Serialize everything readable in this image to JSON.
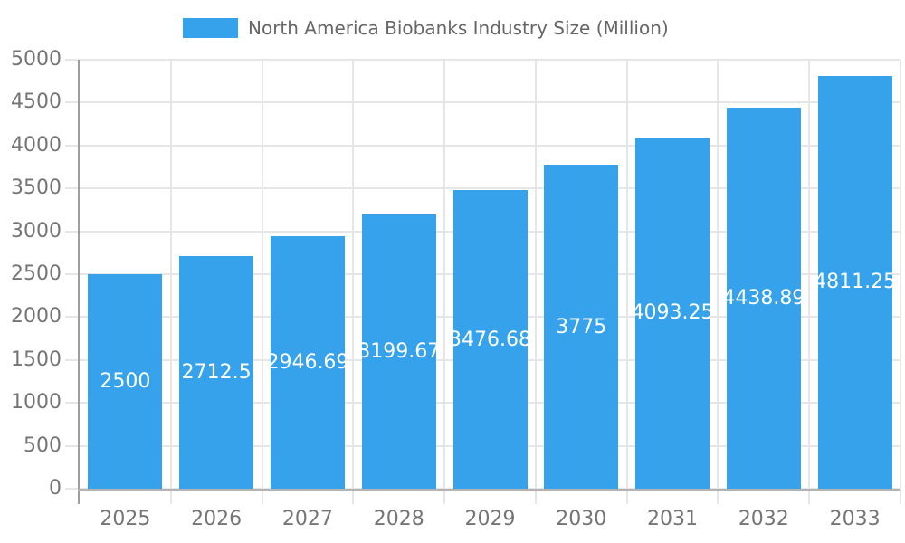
{
  "legend": {
    "label": "North America Biobanks Industry Size (Million)"
  },
  "chart_data": {
    "type": "bar",
    "title": "North America Biobanks Industry Size (Million)",
    "categories": [
      "2025",
      "2026",
      "2027",
      "2028",
      "2029",
      "2030",
      "2031",
      "2032",
      "2033"
    ],
    "values": [
      2500,
      2712.5,
      2946.69,
      3199.67,
      3476.68,
      3775,
      4093.25,
      4438.89,
      4811.25
    ],
    "bar_labels": [
      "2500",
      "2712.5",
      "2946.69",
      "3199.67",
      "3476.68",
      "3775",
      "4093.25",
      "4438.89",
      "4811.25"
    ],
    "xlabel": "",
    "ylabel": "",
    "ylim": [
      0,
      5000
    ],
    "ytick_step": 500,
    "yticks": [
      "0",
      "500",
      "1000",
      "1500",
      "2000",
      "2500",
      "3000",
      "3500",
      "4000",
      "4500",
      "5000"
    ],
    "grid": "both",
    "legend_position": "top"
  },
  "colors": {
    "bar": "#36a2eb",
    "grid": "#e6e6e6",
    "axis_line": "#9e9e9e",
    "baseline": "#b3b3b3",
    "tick_label": "#757575",
    "legend_text": "#666666",
    "bar_label": "#ffffff",
    "background": "#ffffff"
  }
}
